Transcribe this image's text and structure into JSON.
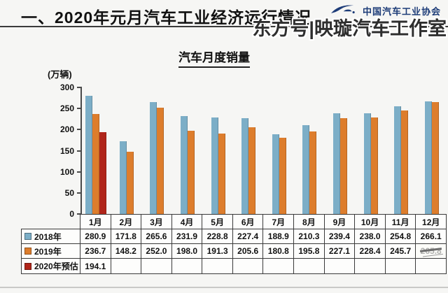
{
  "header": {
    "title": "一、2020年元月汽车工业经济运行情况",
    "logo_text": "中国汽车工业协会"
  },
  "watermark_text": "东方号|映璇汽车工作室",
  "chart_data": {
    "type": "bar",
    "title": "汽车月度销量",
    "ylabel": "(万辆)",
    "xlabel": "",
    "ylim": [
      0,
      300
    ],
    "yticks": [
      300,
      250,
      200,
      150,
      100,
      50,
      0
    ],
    "grid": false,
    "legend_position": "table-below-chart",
    "categories": [
      "1月",
      "2月",
      "3月",
      "4月",
      "5月",
      "6月",
      "7月",
      "8月",
      "9月",
      "10月",
      "11月",
      "12月"
    ],
    "series": [
      {
        "name": "2018年",
        "color": "#7caec7",
        "values": [
          280.9,
          171.8,
          265.6,
          231.9,
          228.8,
          227.4,
          188.9,
          210.3,
          239.4,
          238.0,
          254.8,
          266.1
        ]
      },
      {
        "name": "2019年",
        "color": "#dd7d2c",
        "values": [
          236.7,
          148.2,
          252.0,
          198.0,
          191.3,
          205.6,
          180.8,
          195.8,
          227.1,
          228.4,
          245.7,
          265.8
        ]
      },
      {
        "name": "2020年预估",
        "color": "#b0251a",
        "values": [
          194.1,
          null,
          null,
          null,
          null,
          null,
          null,
          null,
          null,
          null,
          null,
          null
        ]
      }
    ]
  },
  "table": {
    "rows": [
      {
        "label": "2018年",
        "color": "#7caec7",
        "cells": [
          "280.9",
          "171.8",
          "265.6",
          "231.9",
          "228.8",
          "227.4",
          "188.9",
          "210.3",
          "239.4",
          "238.0",
          "254.8",
          "266.1"
        ]
      },
      {
        "label": "2019年",
        "color": "#dd7d2c",
        "cells": [
          "236.7",
          "148.2",
          "252.0",
          "198.0",
          "191.3",
          "205.6",
          "180.8",
          "195.8",
          "227.1",
          "228.4",
          "245.7",
          "265.8"
        ]
      },
      {
        "label": "2020年预估",
        "color": "#b0251a",
        "cells": [
          "194.1",
          "",
          "",
          "",
          "",
          "",
          "",
          "",
          "",
          "",
          "",
          ""
        ]
      }
    ]
  }
}
